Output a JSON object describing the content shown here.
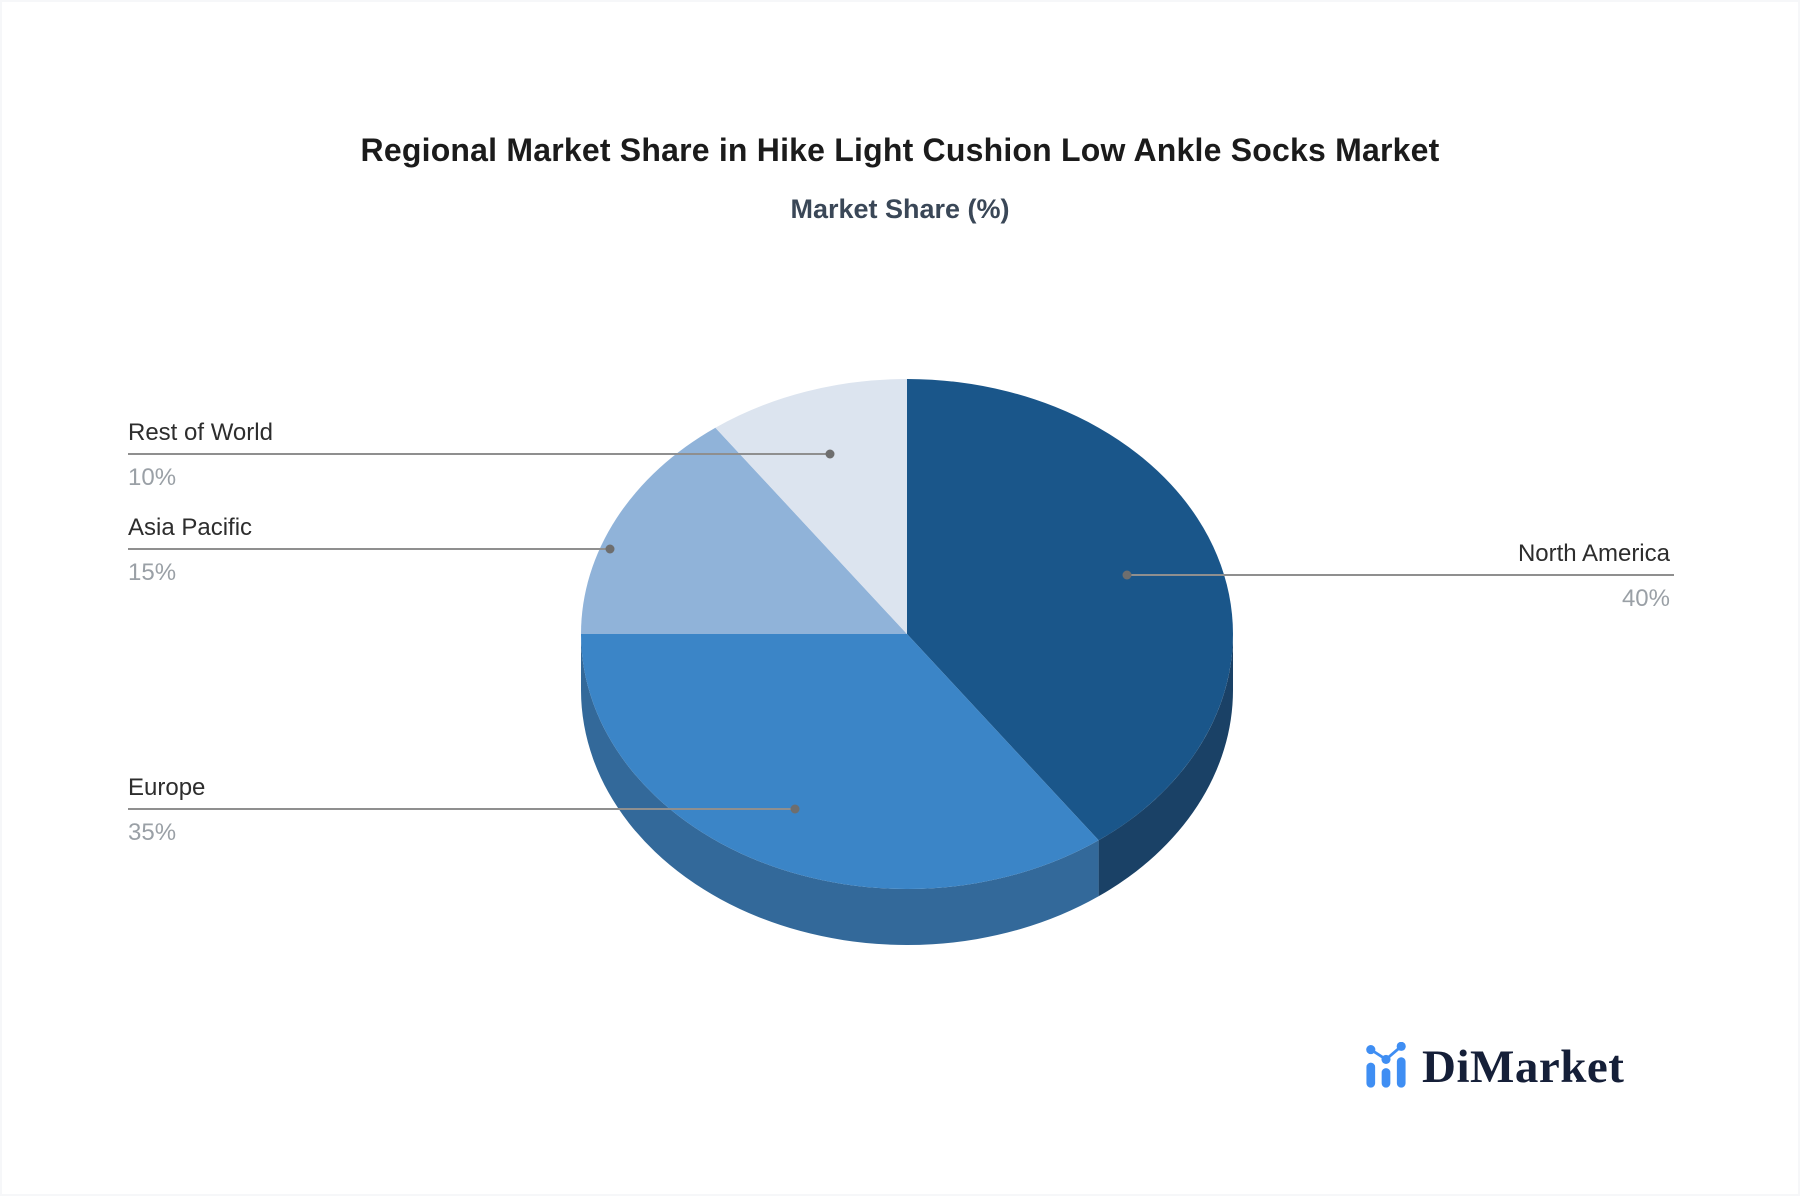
{
  "page": {
    "background": "#ffffff"
  },
  "header": {
    "title": "Regional Market Share in Hike Light Cushion Low Ankle Socks Market",
    "subtitle": "Market Share (%)"
  },
  "chart_data": {
    "type": "pie",
    "style": "3d",
    "title": "Regional Market Share in Hike Light Cushion Low Ankle Socks Market",
    "subtitle": "Market Share (%)",
    "unit": "%",
    "start_angle": "12-oclock",
    "direction": "clockwise",
    "legend_position": "none",
    "labels": "leader-lines",
    "slices": [
      {
        "label": "North America",
        "value": 40,
        "display": "40%",
        "color": "#1a568a",
        "side_color": "#1a4166",
        "label_side": "right"
      },
      {
        "label": "Europe",
        "value": 35,
        "display": "35%",
        "color": "#3b85c7",
        "side_color": "#33699a",
        "label_side": "left"
      },
      {
        "label": "Asia Pacific",
        "value": 15,
        "display": "15%",
        "color": "#90b3d9",
        "side_color": "#7097bd",
        "label_side": "left"
      },
      {
        "label": "Rest of World",
        "value": 10,
        "display": "10%",
        "color": "#dce4ef",
        "side_color": "#b8c4d6",
        "label_side": "left"
      }
    ],
    "leader_line_color": "#8f8f8f",
    "leader_dot_color": "#6e6e6e",
    "label_text_color": "#2d2d2d",
    "value_text_color": "#9aa0a6"
  },
  "branding": {
    "logo_text": "DiMarket",
    "logo_icon": "bar-line-chart-icon",
    "logo_color": "#3f8ef3",
    "logo_text_color": "#151f38"
  }
}
